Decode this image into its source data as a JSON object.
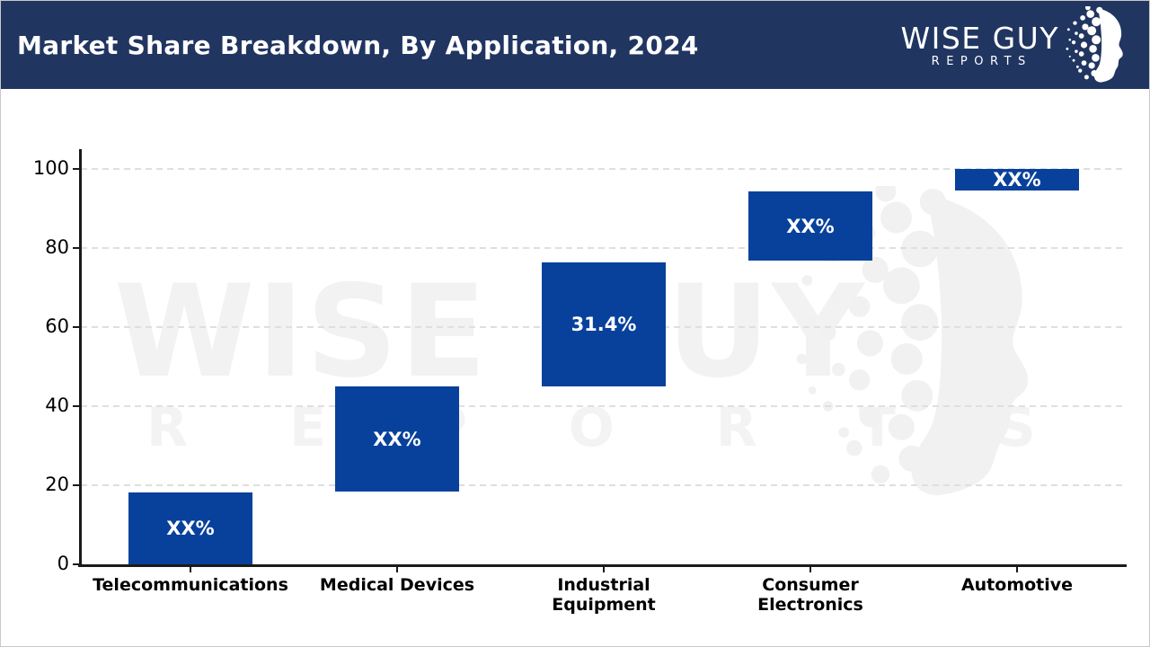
{
  "header": {
    "title": "Market Share Breakdown, By Application, 2024",
    "logo": {
      "line1": "WISE GUY",
      "line2": "REPORTS"
    }
  },
  "watermark": {
    "line1": "WISE GUY",
    "line2": "R E P O R T S"
  },
  "chart_data": {
    "type": "bar",
    "subtype": "waterfall",
    "title": "Market Share Breakdown, By Application, 2024",
    "categories": [
      "Telecommunications",
      "Medical Devices",
      "Industrial\nEquipment",
      "Consumer\nElectronics",
      "Automotive"
    ],
    "bars": [
      {
        "category": "Telecommunications",
        "start": 0,
        "end": 18.1,
        "label": "XX%"
      },
      {
        "category": "Medical Devices",
        "start": 18.4,
        "end": 45.0,
        "label": "XX%"
      },
      {
        "category": "Industrial Equipment",
        "start": 45.0,
        "end": 76.4,
        "label": "31.4%",
        "value": 31.4
      },
      {
        "category": "Consumer Electronics",
        "start": 76.8,
        "end": 94.3,
        "label": "XX%"
      },
      {
        "category": "Automotive",
        "start": 94.5,
        "end": 100,
        "label": "XX%"
      }
    ],
    "xlabel": "",
    "ylabel": "",
    "ylim": [
      0,
      100
    ],
    "yticks": [
      0,
      20,
      40,
      60,
      80,
      100
    ],
    "grid": "horizontal-dashed",
    "legend": "none",
    "colors": {
      "bar": "#08419b",
      "bar_label": "#ffffff",
      "header_bg": "#213561",
      "axis": "#1a1a1a",
      "grid": "#dfdfdf",
      "watermark": "#f2f2f2"
    }
  }
}
